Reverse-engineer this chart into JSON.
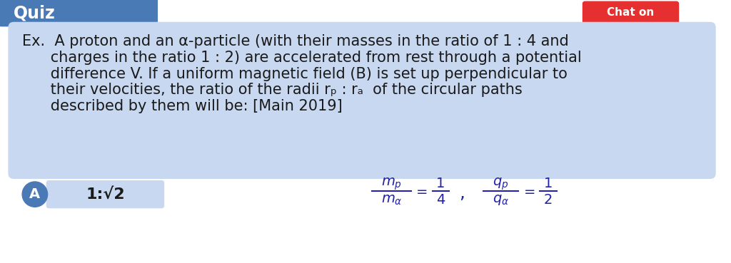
{
  "bg_color": "#ffffff",
  "header_bg": "#4a7ab5",
  "header_text": "Quiz",
  "header_text_color": "#ffffff",
  "chat_btn_color": "#e63030",
  "chat_btn_text": "Chat on",
  "question_box_bg": "#c8d8f0",
  "font_color": "#1a1a1a",
  "font_size_question": 15,
  "font_size_answer": 16,
  "math_color": "#2222aa",
  "answer_label": "A",
  "answer_label_bg": "#4a7ab5",
  "answer_text": "1:√2",
  "answer_box_bg": "#c8d8f0"
}
